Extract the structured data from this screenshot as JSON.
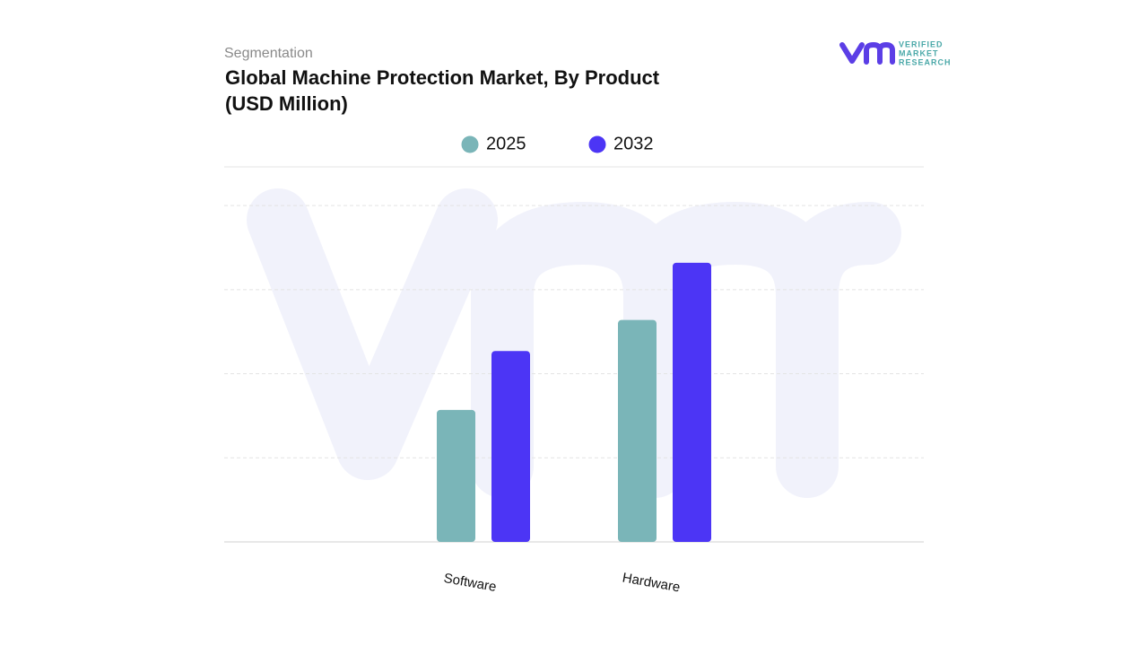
{
  "chart_data": {
    "type": "bar",
    "kicker": "Segmentation",
    "title": "Global Machine Protection Market, By Product",
    "subtitle": "(USD Million)",
    "brand": [
      "VERIFIED",
      "MARKET",
      "RESEARCH"
    ],
    "categories": [
      "Software",
      "Hardware"
    ],
    "series": [
      {
        "name": "2025",
        "color": "#7ab5b8",
        "values": [
          1.57,
          2.64
        ]
      },
      {
        "name": "2032",
        "color": "#4c35f5",
        "values": [
          2.27,
          3.32
        ]
      }
    ],
    "ylim": [
      0,
      4.46
    ],
    "grid_lines": [
      1,
      2,
      3,
      4
    ],
    "grid": true
  }
}
